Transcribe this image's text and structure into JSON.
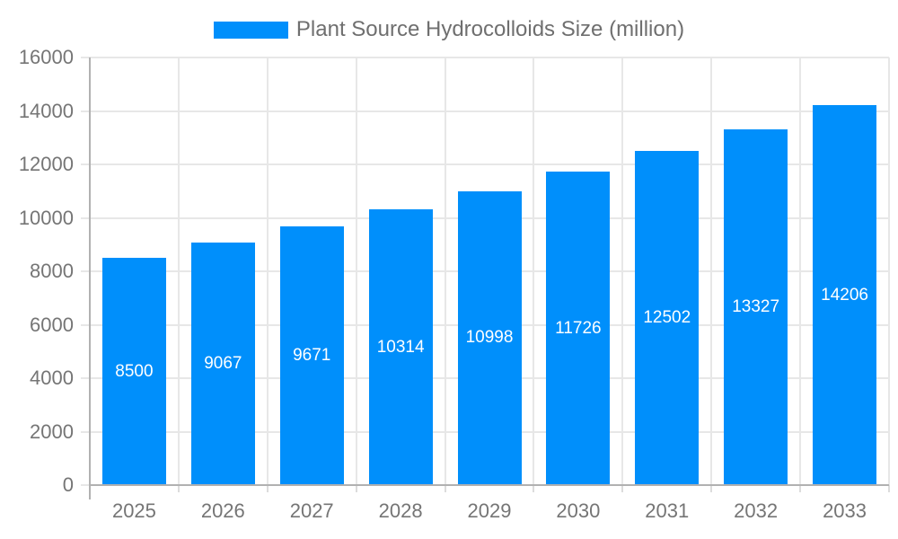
{
  "legend": {
    "label": "Plant Source Hydrocolloids Size (million)"
  },
  "colors": {
    "bar": "#008FFB",
    "bar_label": "#ffffff",
    "axis_line": "#b1b1b1",
    "grid_line": "#e7e7e7",
    "axis_label_text": "#757575",
    "legend_text": "#6f6f6f",
    "background": "#ffffff"
  },
  "chart_data": {
    "type": "bar",
    "title": "Plant Source Hydrocolloids Size (million)",
    "categories": [
      "2025",
      "2026",
      "2027",
      "2028",
      "2029",
      "2030",
      "2031",
      "2032",
      "2033"
    ],
    "values": [
      8500,
      9067,
      9671,
      10314,
      10998,
      11726,
      12502,
      13327,
      14206
    ],
    "series_name": "Plant Source Hydrocolloids Size (million)",
    "xlabel": "",
    "ylabel": "",
    "ylim": [
      0,
      16000
    ],
    "yticks": [
      0,
      2000,
      4000,
      6000,
      8000,
      10000,
      12000,
      14000,
      16000
    ],
    "grid": true,
    "legend_position": "top-center",
    "bar_value_labels": "inside-center"
  }
}
